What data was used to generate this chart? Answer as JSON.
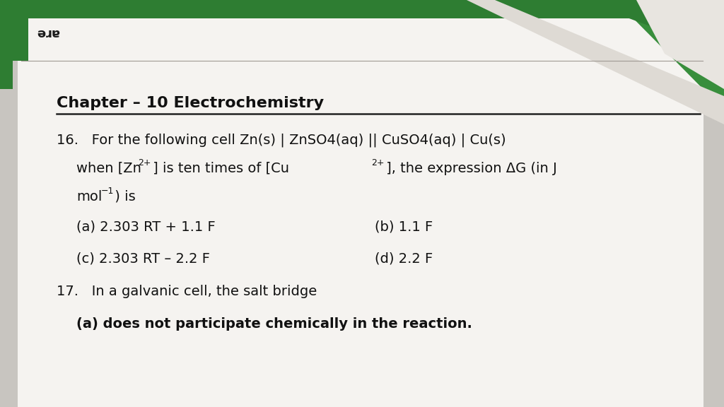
{
  "bg_color": "#c8c5c0",
  "page_bg": "#f5f3f0",
  "chapter_title": "Chapter – 10 Electrochemistry",
  "q16_line1": "16.   For the following cell Zn(s) | ZnSO4(aq) || CuSO4(aq) | Cu(s)",
  "q16_line2a": "when [Zn",
  "q16_line2_sup1": "2+",
  "q16_line2b": " ] is ten times of [Cu",
  "q16_line2_sup2": "2+",
  "q16_line2c": " ], the expression ΔG (in J",
  "q16_line3a": "mol",
  "q16_line3_sup": "−1",
  "q16_line3b": " ) is",
  "opt_a": "(a) 2.303 RT + 1.1 F",
  "opt_b": "(b) 1.1 F",
  "opt_c": "(c) 2.303 RT – 2.2 F",
  "opt_d": "(d) 2.2 F",
  "q17_line": "17.   In a galvanic cell, the salt bridge",
  "q17a_line": "(a) does not participate chemically in the reaction.",
  "font_color": "#111111",
  "chapter_fontsize": 16,
  "body_fontsize": 14,
  "green_dark": "#2e7d32",
  "green_mid": "#388e3c",
  "green_light": "#43a047",
  "page_shadow": "#b0aca6"
}
